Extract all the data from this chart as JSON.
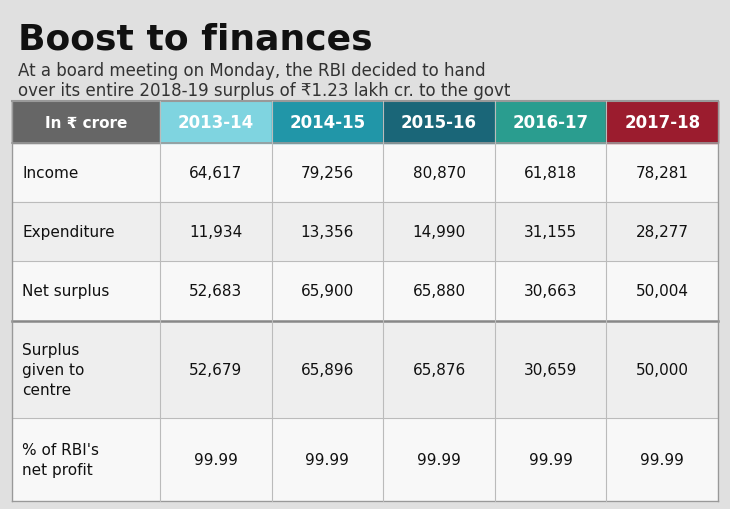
{
  "title": "Boost to finances",
  "subtitle_line1": "At a board meeting on Monday, the RBI decided to hand",
  "subtitle_line2": "over its entire 2018-19 surplus of ₹1.23 lakh cr. to the govt",
  "background_color": "#e0e0e0",
  "header_label": "In ₹ crore",
  "header_label_bg": "#666666",
  "header_label_color": "#ffffff",
  "columns": [
    "2013-14",
    "2014-15",
    "2015-16",
    "2016-17",
    "2017-18"
  ],
  "col_colors": [
    "#7fd4e0",
    "#2196a8",
    "#1a6678",
    "#2a9d8f",
    "#9b1c2e"
  ],
  "col_text_color": "#ffffff",
  "rows": [
    {
      "label": "Income",
      "values": [
        "64,617",
        "79,256",
        "80,870",
        "61,818",
        "78,281"
      ],
      "bg": "#f8f8f8"
    },
    {
      "label": "Expenditure",
      "values": [
        "11,934",
        "13,356",
        "14,990",
        "31,155",
        "28,277"
      ],
      "bg": "#eeeeee"
    },
    {
      "label": "Net surplus",
      "values": [
        "52,683",
        "65,900",
        "65,880",
        "30,663",
        "50,004"
      ],
      "bg": "#f8f8f8"
    },
    {
      "label": "Surplus\ngiven to\ncentre",
      "values": [
        "52,679",
        "65,896",
        "65,876",
        "30,659",
        "50,000"
      ],
      "bg": "#eeeeee"
    },
    {
      "label": "% of RBI's\nnet profit",
      "values": [
        "99.99",
        "99.99",
        "99.99",
        "99.99",
        "99.99"
      ],
      "bg": "#f8f8f8"
    }
  ],
  "thick_divider_after_row": 2
}
